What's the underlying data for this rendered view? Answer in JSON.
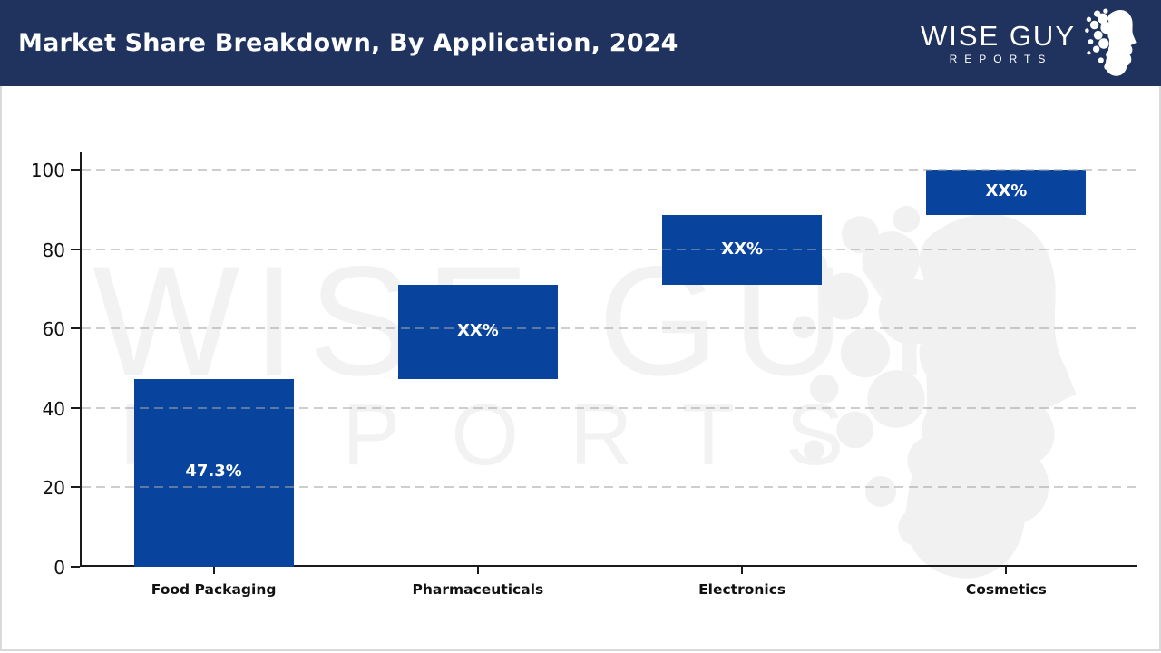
{
  "header": {
    "title": "Market Share Breakdown, By Application, 2024",
    "logo": {
      "line1": "WISE GUY",
      "line2": "REPORTS"
    }
  },
  "watermark": {
    "line1": "WISE GUY",
    "line2": "REPORTS"
  },
  "chart_data": {
    "type": "bar",
    "subtype": "waterfall",
    "title": "Market Share Breakdown, By Application, 2024",
    "categories": [
      "Food Packaging",
      "Pharmaceuticals",
      "Electronics",
      "Cosmetics"
    ],
    "bars": [
      {
        "category": "Food Packaging",
        "start": 0,
        "end": 47.3,
        "label": "47.3%"
      },
      {
        "category": "Pharmaceuticals",
        "start": 47.3,
        "end": 71.0,
        "label": "XX%"
      },
      {
        "category": "Electronics",
        "start": 71.0,
        "end": 88.6,
        "label": "XX%"
      },
      {
        "category": "Cosmetics",
        "start": 88.6,
        "end": 100.0,
        "label": "XX%"
      }
    ],
    "yticks": [
      0,
      20,
      40,
      60,
      80,
      100
    ],
    "ylim": [
      0,
      105
    ],
    "grid": "dashed horizontal",
    "legend": "none",
    "bar_color": "#08449e",
    "bar_label_color": "#ffffff",
    "axis_color": "#1a1a1a",
    "header_bg": "#20335f"
  }
}
